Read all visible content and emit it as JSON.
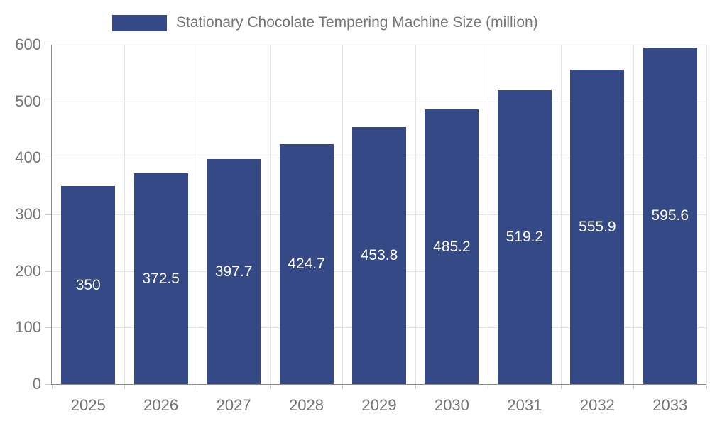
{
  "chart_data": {
    "type": "bar",
    "title": "Stationary Chocolate Tempering Machine Size (million)",
    "legend": [
      "Stationary Chocolate Tempering Machine Size (million)"
    ],
    "legend_position": "top",
    "categories": [
      "2025",
      "2026",
      "2027",
      "2028",
      "2029",
      "2030",
      "2031",
      "2032",
      "2033"
    ],
    "series": [
      {
        "name": "Stationary Chocolate Tempering Machine Size (million)",
        "values": [
          350,
          372.5,
          397.7,
          424.7,
          453.8,
          485.2,
          519.2,
          555.9,
          595.6
        ]
      }
    ],
    "value_labels": [
      "350",
      "372.5",
      "397.7",
      "424.7",
      "453.8",
      "485.2",
      "519.2",
      "555.9",
      "595.6"
    ],
    "xlabel": "",
    "ylabel": "",
    "ylim": [
      0,
      600
    ],
    "yticks": [
      0,
      100,
      200,
      300,
      400,
      500,
      600
    ],
    "grid": true,
    "bar_color": "#354986",
    "value_label_color": "#ffffff"
  },
  "colors": {
    "background": "#ffffff",
    "axis_line": "#8c8c8c",
    "gridline": "#e3e3e3",
    "tick": "#cccccc",
    "axis_label_text": "#757575",
    "legend_text": "#757575"
  }
}
